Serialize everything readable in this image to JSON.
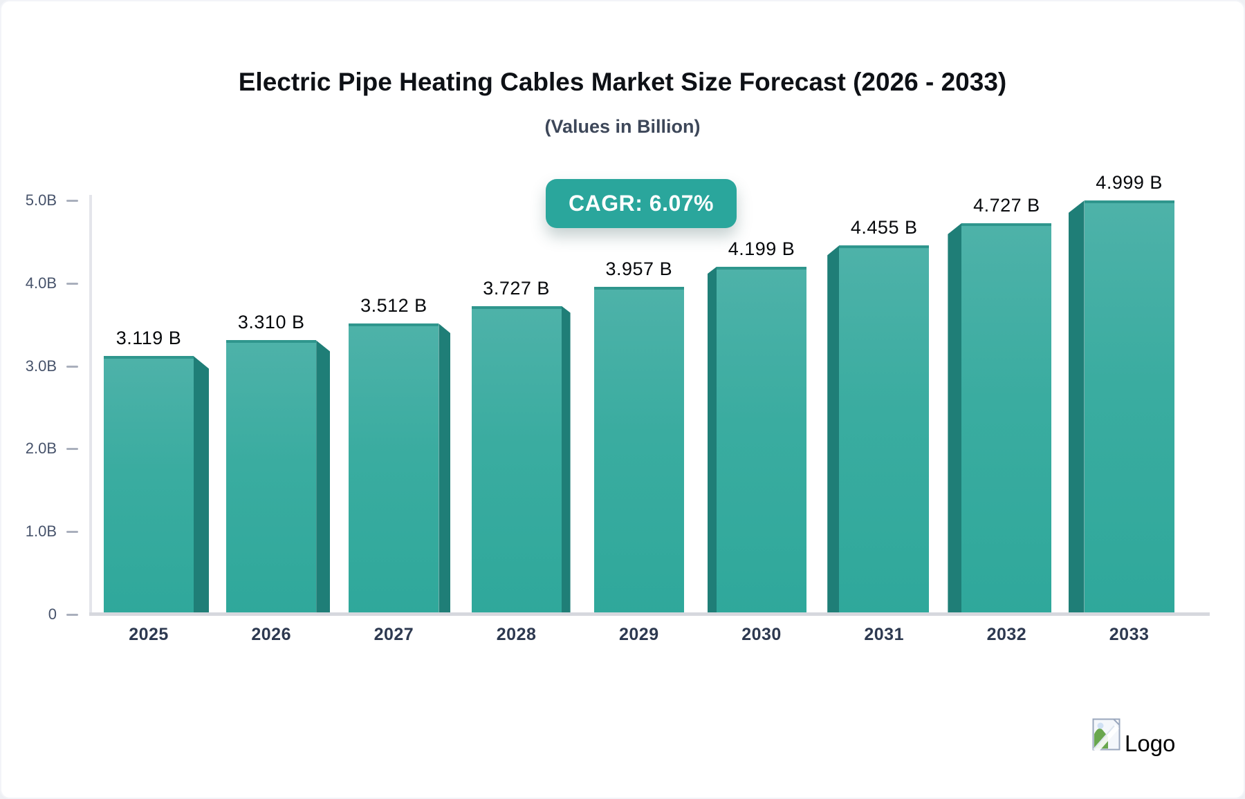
{
  "header": {
    "title": "Electric Pipe Heating Cables Market Size Forecast (2026 - 2033)",
    "subtitle": "(Values in Billion)"
  },
  "badge": {
    "label": "CAGR: 6.07%",
    "bg_color": "#2aa69c"
  },
  "chart_data": {
    "type": "bar",
    "title": "Electric Pipe Heating Cables Market Size Forecast (2026 - 2033)",
    "subtitle": "(Values in Billion)",
    "categories": [
      "2025",
      "2026",
      "2027",
      "2028",
      "2029",
      "2030",
      "2031",
      "2032",
      "2033"
    ],
    "values": [
      3.119,
      3.31,
      3.512,
      3.727,
      3.957,
      4.199,
      4.455,
      4.727,
      4.999
    ],
    "value_labels": [
      "3.119 B",
      "3.310 B",
      "3.512 B",
      "3.727 B",
      "3.957 B",
      "4.199 B",
      "4.455 B",
      "4.727 B",
      "4.999 B"
    ],
    "xlabel": "",
    "ylabel": "",
    "ylim": [
      0,
      5
    ],
    "yticks": [
      {
        "label": "0",
        "value": 0
      },
      {
        "label": "1.0B",
        "value": 1
      },
      {
        "label": "2.0B",
        "value": 2
      },
      {
        "label": "3.0B",
        "value": 3
      },
      {
        "label": "4.0B",
        "value": 4
      },
      {
        "label": "5.0B",
        "value": 5
      }
    ],
    "grid": false,
    "legend": "none",
    "style": "3d-perspective-bars",
    "colors": {
      "bar_front_top": "#4eb2a9",
      "bar_front_bottom": "#2fa89b",
      "bar_top_edge": "#2f968d",
      "bar_side": "#1f7e77",
      "axis_line": "#e4e5eb",
      "baseline": "#d6d8de",
      "tick_dash": "#a9afbc",
      "tick_text": "#47536b",
      "category_text": "#2d3950",
      "value_text": "#07090c"
    }
  },
  "footer": {
    "logo_text": "Logo",
    "logo_icon": "broken-image-icon"
  }
}
